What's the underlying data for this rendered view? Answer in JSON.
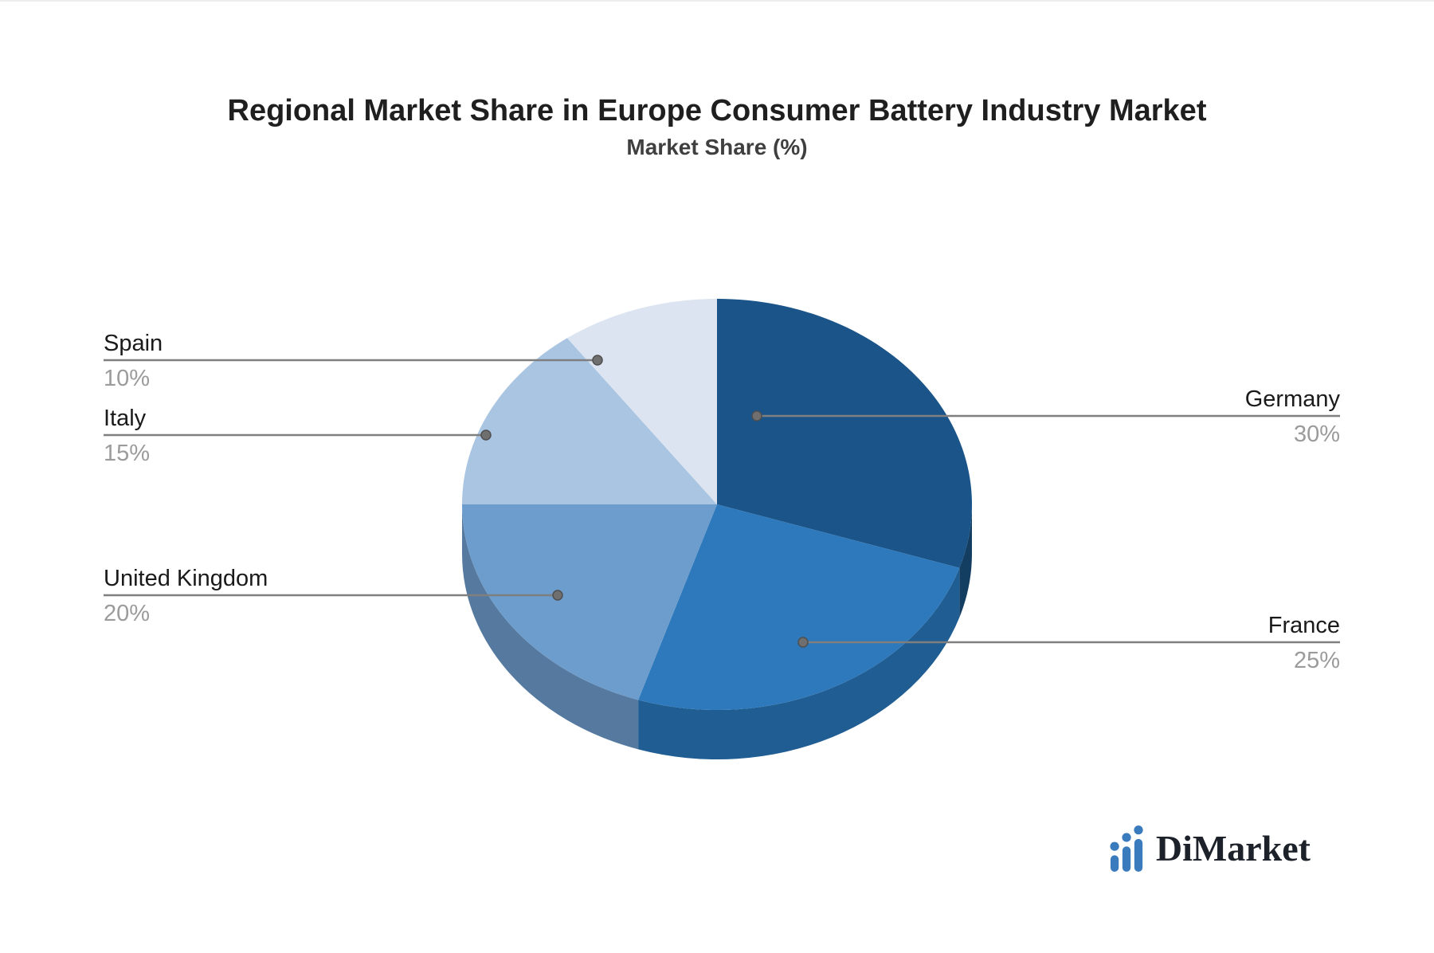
{
  "title": "Regional Market Share in Europe Consumer Battery Industry Market",
  "subtitle": "Market Share (%)",
  "colors": {
    "title": "#1f1f1f",
    "subtitle": "#3f3f3f",
    "label_name": "#1a1a1a",
    "label_value": "#9b9b9b",
    "leader_line": "#7f7f7f",
    "leader_dot_fill": "#6f6f6f",
    "leader_dot_stroke": "#4f4f4f"
  },
  "brand": {
    "name": "DiMarket",
    "icon": "bar-chart-logo-icon",
    "icon_color": "#3a7bbd",
    "text_color": "#1d2129"
  },
  "chart_data": {
    "type": "pie",
    "title": "Regional Market Share in Europe Consumer Battery Industry Market",
    "subtitle": "Market Share (%)",
    "unit": "%",
    "effect": "3d",
    "start_angle_deg": 0,
    "direction": "clockwise",
    "legend_position": "callout-labels",
    "slices": [
      {
        "label": "Germany",
        "value": 30,
        "value_label": "30%",
        "color": "#1a5488",
        "side_color": "#133d61",
        "label_side": "right"
      },
      {
        "label": "France",
        "value": 25,
        "value_label": "25%",
        "color": "#2e79bc",
        "side_color": "#1f5d92",
        "label_side": "right"
      },
      {
        "label": "United Kingdom",
        "value": 20,
        "value_label": "20%",
        "color": "#6d9dcd",
        "side_color": "#567a9f",
        "label_side": "left"
      },
      {
        "label": "Italy",
        "value": 15,
        "value_label": "15%",
        "color": "#a9c5e2",
        "label_side": "left"
      },
      {
        "label": "Spain",
        "value": 10,
        "value_label": "10%",
        "color": "#dbe4f0",
        "label_side": "left"
      }
    ]
  }
}
